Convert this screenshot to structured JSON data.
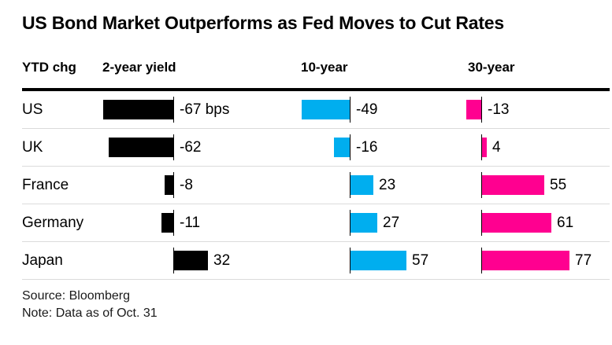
{
  "title": "US Bond Market Outperforms as Fed Moves to Cut Rates",
  "header": {
    "row_label": "YTD chg",
    "columns": [
      "2-year yield",
      "10-year",
      "30-year"
    ]
  },
  "footer": {
    "source": "Source: Bloomberg",
    "note": "Note: Data as of Oct. 31"
  },
  "colors": {
    "two_year": "#000000",
    "ten_year": "#00AEEF",
    "thirty_year": "#FF0090",
    "separator": "#DBDBDB"
  },
  "chart_data": {
    "type": "bar",
    "orientation": "horizontal",
    "unit": "bps",
    "categories": [
      "US",
      "UK",
      "France",
      "Germany",
      "Japan"
    ],
    "series": [
      {
        "name": "2-year yield",
        "color": "#000000",
        "values": [
          -67,
          -62,
          -8,
          -11,
          32
        ],
        "labels": [
          "-67 bps",
          "-62",
          "-8",
          "-11",
          "32"
        ]
      },
      {
        "name": "10-year",
        "color": "#00AEEF",
        "values": [
          -49,
          -16,
          23,
          27,
          57
        ],
        "labels": [
          "-49",
          "-16",
          "23",
          "27",
          "57"
        ]
      },
      {
        "name": "30-year",
        "color": "#FF0090",
        "values": [
          -13,
          4,
          55,
          61,
          77
        ],
        "labels": [
          "-13",
          "4",
          "55",
          "61",
          "77"
        ]
      }
    ],
    "title": "US Bond Market Outperforms as Fed Moves to Cut Rates",
    "xlabel": "",
    "ylabel": "",
    "legend": false,
    "grid": false
  }
}
